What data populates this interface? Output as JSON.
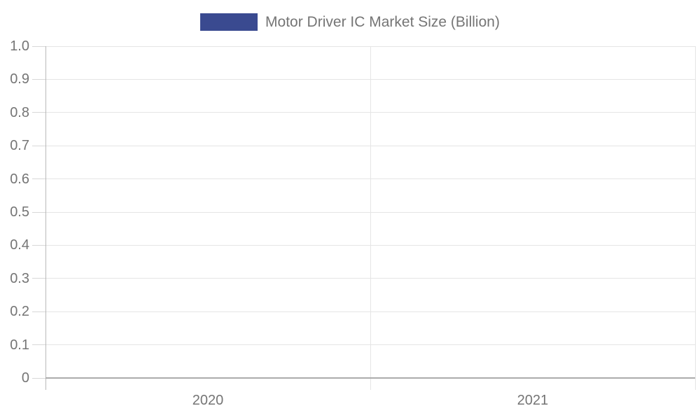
{
  "legend": {
    "label": "Motor Driver IC Market Size (Billion)",
    "swatch_color": "#3a4a90"
  },
  "chart_data": {
    "type": "bar",
    "title": "Motor Driver IC Market Size (Billion)",
    "categories": [
      "2020",
      "2021"
    ],
    "series": [
      {
        "name": "Motor Driver IC Market Size (Billion)",
        "color": "#3a4a90",
        "values": [
          null,
          null
        ]
      }
    ],
    "xlabel": "",
    "ylabel": "",
    "ylim": [
      0,
      1.0
    ],
    "yticks": [
      {
        "value": 0.0,
        "label": "0"
      },
      {
        "value": 0.1,
        "label": "0.1"
      },
      {
        "value": 0.2,
        "label": "0.2"
      },
      {
        "value": 0.3,
        "label": "0.3"
      },
      {
        "value": 0.4,
        "label": "0.4"
      },
      {
        "value": 0.5,
        "label": "0.5"
      },
      {
        "value": 0.6,
        "label": "0.6"
      },
      {
        "value": 0.7,
        "label": "0.7"
      },
      {
        "value": 0.8,
        "label": "0.8"
      },
      {
        "value": 0.9,
        "label": "0.9"
      },
      {
        "value": 1.0,
        "label": "1.0"
      }
    ],
    "grid": true,
    "legend_position": "top-center",
    "note_visible_data": "no bars rendered (empty/zero series)"
  },
  "colors": {
    "background": "#ffffff",
    "legend_swatch": "#3a4a90",
    "text": "#757575",
    "gridline": "#e5e5e5",
    "tick": "#d8d8d8",
    "axis": "#b9b9b9",
    "baseline": "#ababab"
  }
}
